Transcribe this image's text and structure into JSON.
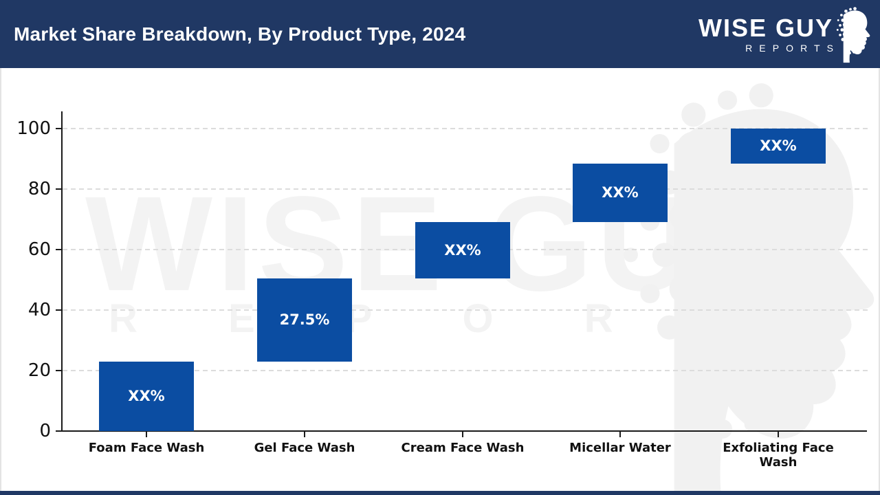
{
  "header": {
    "title": "Market Share Breakdown, By Product Type, 2024",
    "logo": {
      "primary": "WISE GUY",
      "secondary": "REPORTS"
    }
  },
  "watermark": {
    "primary": "WISE GUY",
    "secondary": "R E P O R T S"
  },
  "chart_data": {
    "type": "bar",
    "subtype": "waterfall-floating-bars",
    "title": "Market Share Breakdown, By Product Type, 2024",
    "xlabel": "",
    "ylabel": "",
    "categories": [
      "Foam Face Wash",
      "Gel Face Wash",
      "Cream Face Wash",
      "Micellar Water",
      "Exfoliating Face Wash"
    ],
    "series": [
      {
        "name": "Market share (%)",
        "segments": [
          {
            "category": "Foam Face Wash",
            "start": 0,
            "end": 23,
            "label": "XX%"
          },
          {
            "category": "Gel Face Wash",
            "start": 23,
            "end": 50.5,
            "label": "27.5%"
          },
          {
            "category": "Cream Face Wash",
            "start": 50.5,
            "end": 69,
            "label": "XX%"
          },
          {
            "category": "Micellar Water",
            "start": 69,
            "end": 88.5,
            "label": "XX%"
          },
          {
            "category": "Exfoliating Face Wash",
            "start": 88.5,
            "end": 100,
            "label": "XX%"
          }
        ]
      }
    ],
    "yticks": [
      0,
      20,
      40,
      60,
      80,
      100
    ],
    "ylim": [
      0,
      106
    ],
    "grid": "horizontal-dashed",
    "legend": "none",
    "bar_color": "#0b4da2",
    "bar_label_color": "#ffffff"
  },
  "colors": {
    "header_bg": "#203864",
    "bar": "#0b4da2",
    "grid": "#dcdcdc",
    "axis": "#1a1a1a",
    "watermark": "#f3f3f3"
  }
}
